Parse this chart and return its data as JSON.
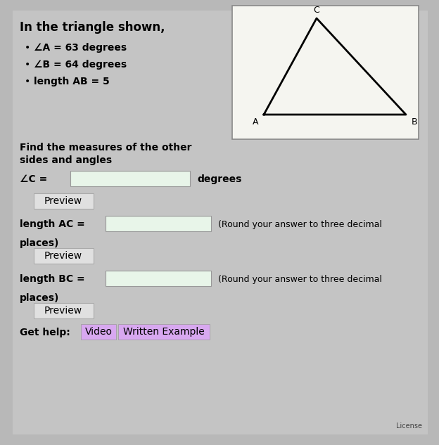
{
  "title": "In the triangle shown,",
  "bullet1": "∠A = 63 degrees",
  "bullet2": "∠B = 64 degrees",
  "bullet3": "length AB = 5",
  "find_text1": "Find the measures of the other",
  "find_text2": "sides and angles",
  "label_angleC": "∠C =",
  "label_degrees": "degrees",
  "round_note": "(Round your answer to three decimal",
  "places_text": "places)",
  "preview_text": "Preview",
  "gethelp_text": "Get help:",
  "video_text": "Video",
  "written_text": "Written Example",
  "license_text": "License",
  "bg_color": "#b8b8b8",
  "content_bg_color": "#c0c0c0",
  "white_box_color": "#f5f5f0",
  "input_box_color": "#e8f5e9",
  "preview_btn_color": "#e0e0e0",
  "video_btn_color": "#d8a8f0",
  "written_btn_color": "#d8a8f0",
  "font_size_title": 12,
  "font_size_body": 10,
  "font_size_small": 9,
  "font_size_tiny": 7
}
